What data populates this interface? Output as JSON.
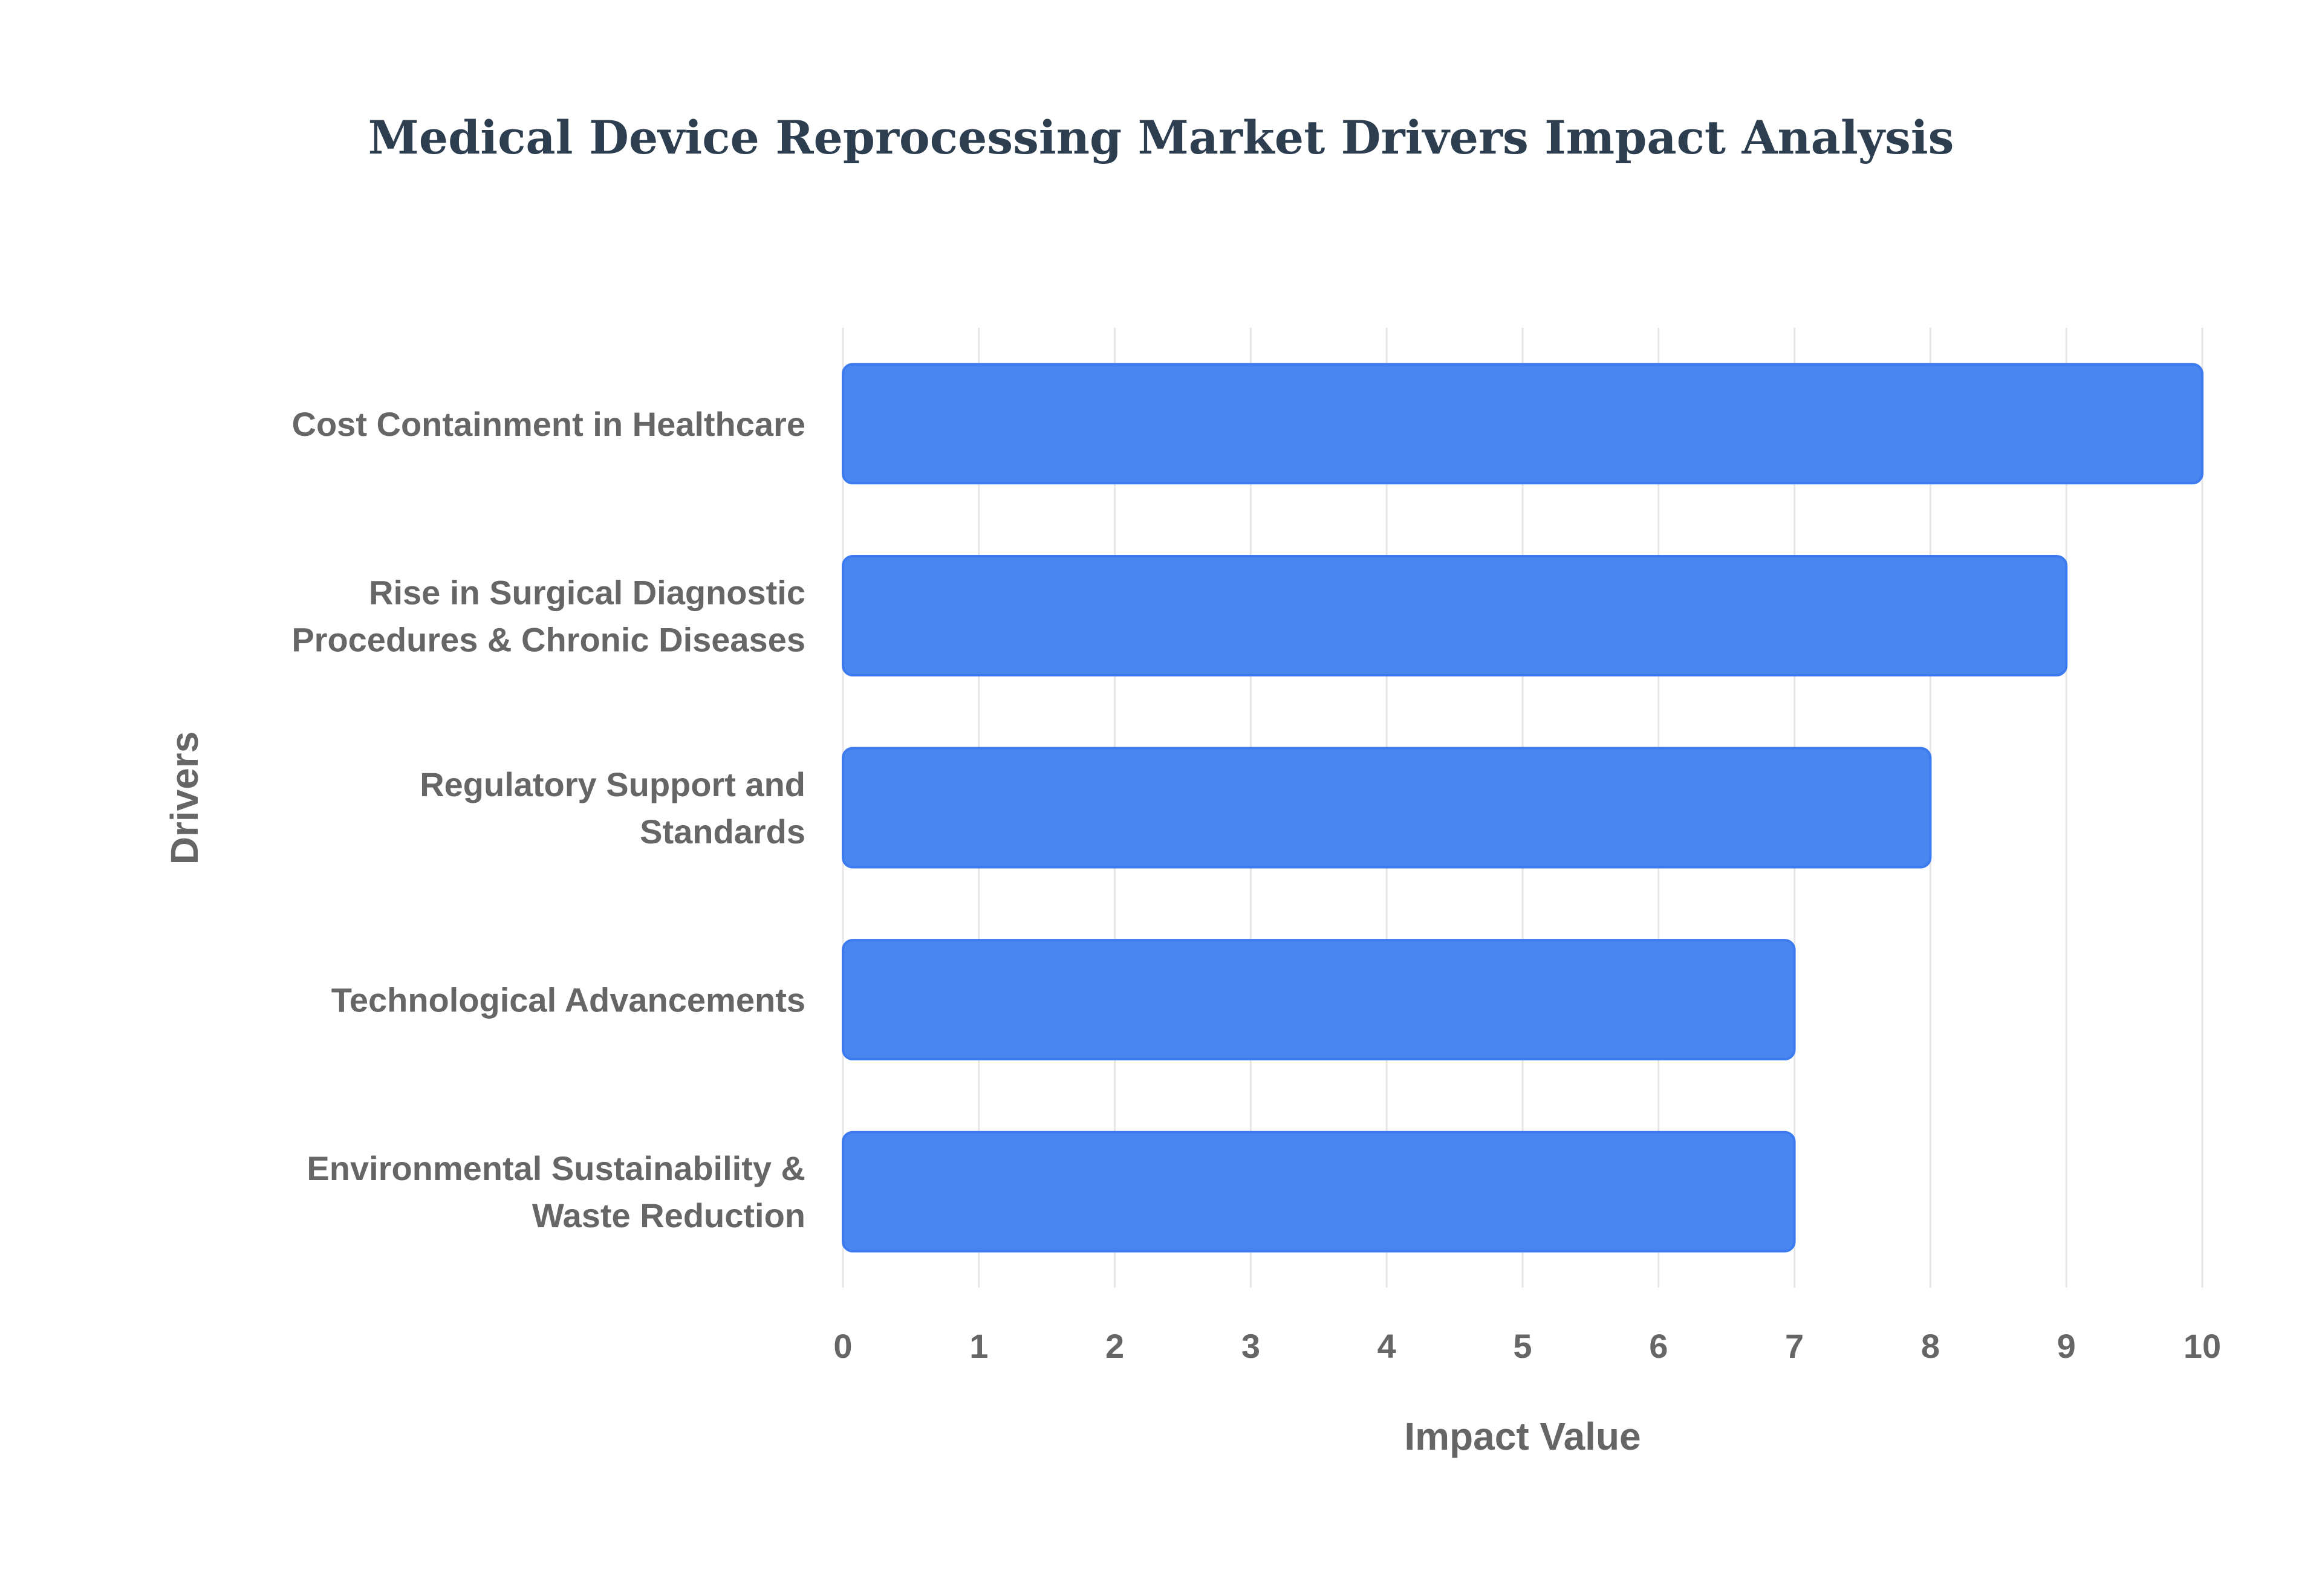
{
  "chart_data": {
    "type": "bar",
    "orientation": "horizontal",
    "title": "Medical Device Reprocessing Market Drivers Impact Analysis",
    "xlabel": "Impact Value",
    "ylabel": "Drivers",
    "categories": [
      [
        "Cost Containment in Healthcare"
      ],
      [
        "Rise in Surgical Diagnostic",
        "Procedures & Chronic Diseases"
      ],
      [
        "Regulatory Support and",
        "Standards"
      ],
      [
        "Technological Advancements"
      ],
      [
        "Environmental Sustainability &",
        "Waste Reduction"
      ]
    ],
    "values": [
      10,
      9,
      8,
      7,
      7
    ],
    "xlim": [
      0,
      10
    ],
    "xticks": [
      "0",
      "1",
      "2",
      "3",
      "4",
      "5",
      "6",
      "7",
      "8",
      "9",
      "10"
    ],
    "grid": true,
    "colors": {
      "bar_fill": "#4a86f0",
      "bar_stroke": "#3b7bef",
      "title": "#2c3e50",
      "text": "#666666",
      "grid": "#e6e6e6"
    }
  }
}
